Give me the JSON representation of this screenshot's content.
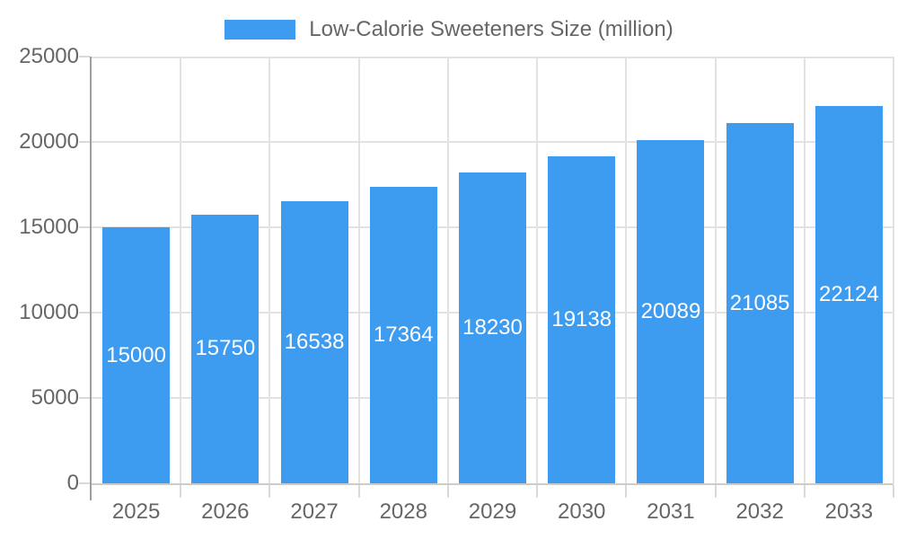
{
  "legend": {
    "label": "Low-Calorie Sweeteners Size (million)"
  },
  "chart_data": {
    "type": "bar",
    "title": "Low-Calorie Sweeteners Size (million)",
    "categories": [
      "2025",
      "2026",
      "2027",
      "2028",
      "2029",
      "2030",
      "2031",
      "2032",
      "2033"
    ],
    "values": [
      15000,
      15750,
      16538,
      17364,
      18230,
      19138,
      20089,
      21085,
      22124
    ],
    "xlabel": "",
    "ylabel": "",
    "ylim": [
      0,
      25000
    ],
    "yticks": [
      0,
      5000,
      10000,
      15000,
      20000,
      25000
    ],
    "grid": true,
    "legend_position": "top",
    "bar_color": "#3d9bf0",
    "bar_label_color": "#ffffff",
    "axis_text_color": "#666666",
    "grid_color": "#e2e2e2",
    "y_axis_line_color": "#9e9e9e",
    "baseline_color": "#cccccc",
    "tick_color": "#d9d9d9"
  }
}
